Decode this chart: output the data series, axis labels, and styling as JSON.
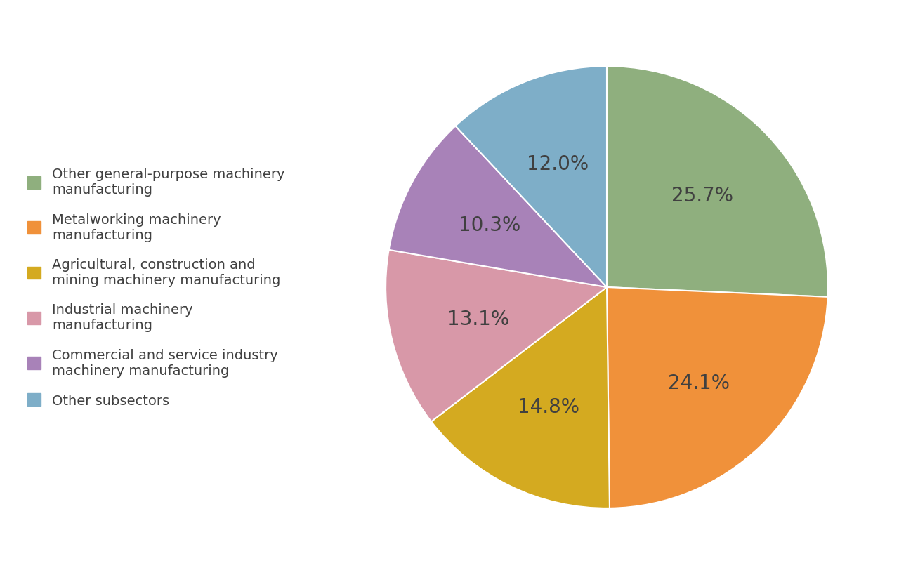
{
  "labels": [
    "Other general-purpose machinery\nmanufacturing",
    "Metalworking machinery\nmanufacturing",
    "Agricultural, construction and\nmining machinery manufacturing",
    "Industrial machinery\nmanufacturing",
    "Commercial and service industry\nmachinery manufacturing",
    "Other subsectors"
  ],
  "values": [
    25.7,
    24.1,
    14.8,
    13.1,
    10.3,
    12.0
  ],
  "colors": [
    "#8faf7e",
    "#f0913a",
    "#d4aa20",
    "#d898a8",
    "#a882b8",
    "#7eaec8"
  ],
  "autopct_labels": [
    "25.7%",
    "24.1%",
    "14.8%",
    "13.1%",
    "10.3%",
    "12.0%"
  ],
  "legend_labels": [
    "Other general-purpose machinery\nmanufacturing",
    "Metalworking machinery\nmanufacturing",
    "Agricultural, construction and\nmining machinery manufacturing",
    "Industrial machinery\nmanufacturing",
    "Commercial and service industry\nmachinery manufacturing",
    "Other subsectors"
  ],
  "startangle": 90,
  "background_color": "#ffffff",
  "text_color": "#404040",
  "fontsize_pct": 20,
  "fontsize_legend": 14
}
